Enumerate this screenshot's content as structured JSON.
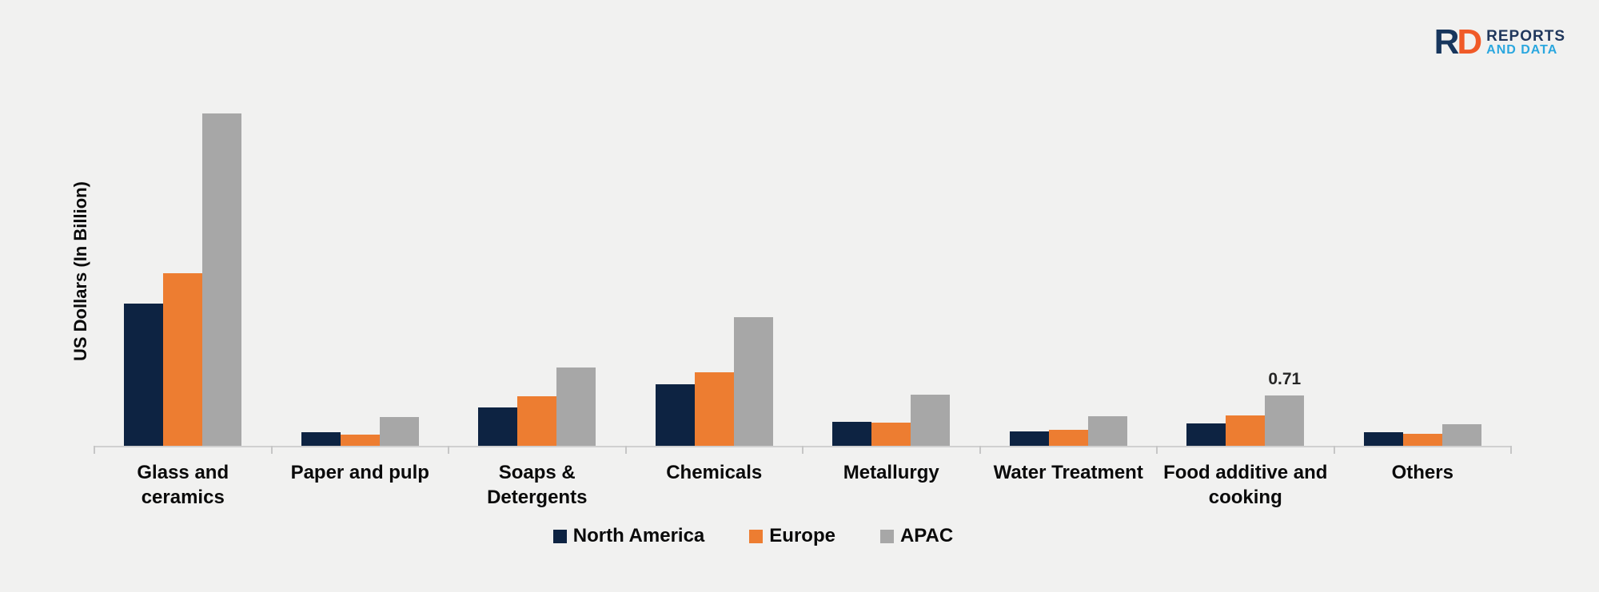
{
  "logo": {
    "mark_r": "R",
    "mark_d": "D",
    "line1": "REPORTS",
    "line2": "AND DATA",
    "mark_r_color": "#17365d",
    "mark_d_color": "#f05a28",
    "line1_color": "#20375c",
    "line2_color": "#2aa7df"
  },
  "chart_data": {
    "type": "bar",
    "title": "",
    "ylabel": "US Dollars  (In Billion)",
    "xlabel": "",
    "ylim": [
      0,
      5
    ],
    "grid": false,
    "legend_position": "bottom",
    "background_color": "#f1f1f0",
    "axis_color": "#d0d0d0",
    "categories": [
      "Glass and ceramics",
      "Paper and pulp",
      "Soaps & Detergents",
      "Chemicals",
      "Metallurgy",
      "Water Treatment",
      "Food additive and cooking",
      "Others"
    ],
    "series": [
      {
        "name": "North America",
        "color": "#0d2342",
        "values": [
          2.01,
          0.19,
          0.54,
          0.87,
          0.34,
          0.2,
          0.32,
          0.19
        ]
      },
      {
        "name": "Europe",
        "color": "#ed7d31",
        "values": [
          2.43,
          0.16,
          0.7,
          1.04,
          0.33,
          0.23,
          0.43,
          0.17
        ]
      },
      {
        "name": "APAC",
        "color": "#a7a7a7",
        "values": [
          4.69,
          0.41,
          1.1,
          1.82,
          0.72,
          0.42,
          0.71,
          0.3
        ]
      }
    ],
    "data_labels": [
      {
        "category_index": 6,
        "series_index": 2,
        "text": "0.71"
      }
    ]
  }
}
